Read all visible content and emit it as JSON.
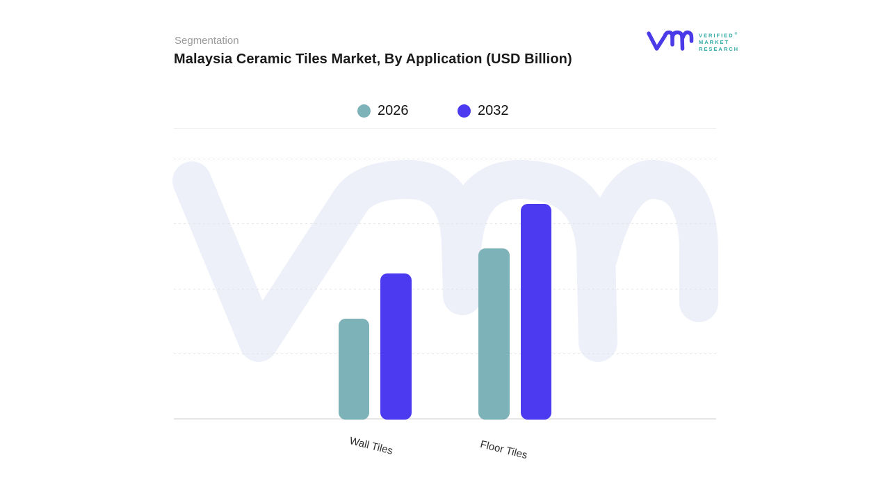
{
  "header": {
    "eyebrow": "Segmentation",
    "title": "Malaysia Ceramic Tiles Market, By Application (USD Billion)"
  },
  "logo": {
    "glyph": "vmr-monogram",
    "glyph_color": "#4b3ae8",
    "text_color": "#2faaa5",
    "registered_mark": "®",
    "lines": [
      "VERIFIED",
      "MARKET",
      "RESEARCH"
    ]
  },
  "legend": {
    "items": [
      {
        "label": "2026",
        "color": "#7cb2b8"
      },
      {
        "label": "2032",
        "color": "#4c3af0"
      }
    ]
  },
  "watermark": {
    "name": "vmr-watermark",
    "color": "#eef0f9"
  },
  "chart_data": {
    "type": "bar",
    "title": "Malaysia Ceramic Tiles Market, By Application (USD Billion)",
    "categories": [
      "Wall Tiles",
      "Floor Tiles"
    ],
    "series": [
      {
        "name": "2026",
        "color": "#7cb2b8",
        "values": [
          1.55,
          2.62
        ]
      },
      {
        "name": "2032",
        "color": "#4c3af0",
        "values": [
          2.24,
          3.31
        ]
      }
    ],
    "xlabel": "",
    "ylabel": "",
    "y_axis": {
      "ylim": [
        0,
        4
      ],
      "tick_labels_visible": false,
      "note": "no numeric axis labels shown; values estimated in unlabeled gridline units"
    },
    "grid": "horizontal-dashed",
    "gridline_count": 4,
    "legend_position": "top-center",
    "background_watermark": "VMR monogram"
  }
}
